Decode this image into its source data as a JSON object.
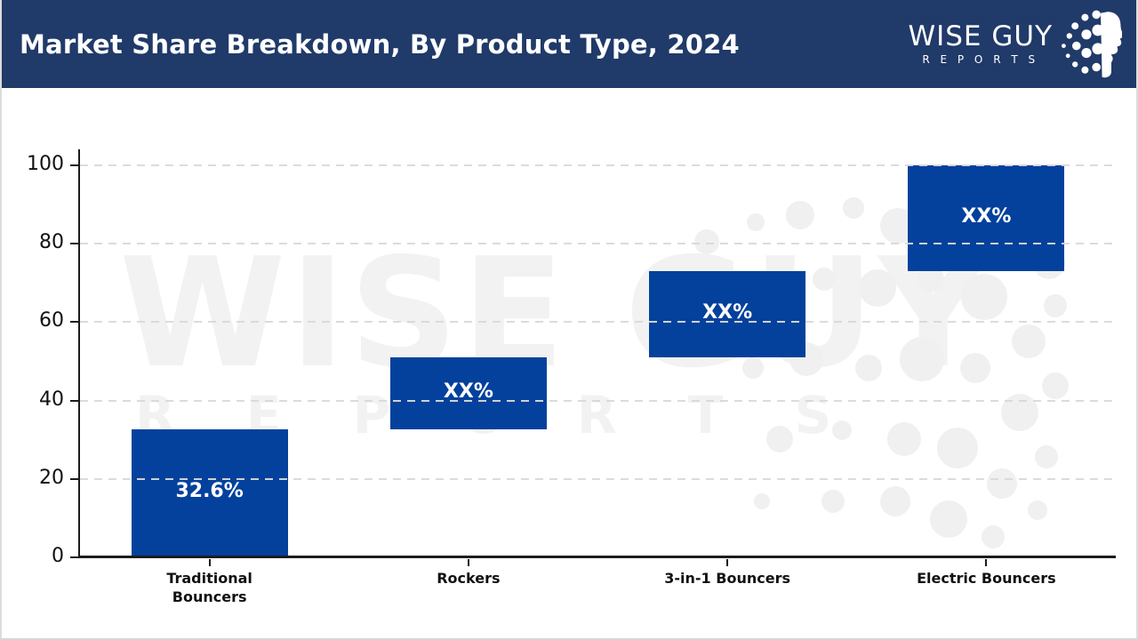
{
  "header": {
    "title": "Market Share Breakdown, By Product Type, 2024",
    "logo": {
      "name": "WISE GUY",
      "subtitle": "R E P O R T S"
    }
  },
  "watermark": {
    "name": "WISE GUY",
    "subtitle": "R E P O R T S"
  },
  "colors": {
    "header_bg": "#203a69",
    "bar": "#04419c",
    "axis": "#1c1c1c",
    "grid": "#d9d9d9",
    "tick_label": "#111111",
    "bar_label": "#ffffff",
    "watermark": "#f2f2f2"
  },
  "chart_data": {
    "type": "bar",
    "subtype": "stacked-waterfall",
    "title": "Market Share Breakdown, By Product Type, 2024",
    "categories": [
      "Traditional\nBouncers",
      "Rockers",
      "3-in-1 Bouncers",
      "Electric Bouncers"
    ],
    "segments": [
      {
        "category": "Traditional Bouncers",
        "from": 0,
        "to": 32.6,
        "label": "32.6%"
      },
      {
        "category": "Rockers",
        "from": 32.6,
        "to": 51,
        "label": "XX%"
      },
      {
        "category": "3-in-1 Bouncers",
        "from": 51,
        "to": 73,
        "label": "XX%"
      },
      {
        "category": "Electric Bouncers",
        "from": 73,
        "to": 100,
        "label": "XX%"
      }
    ],
    "xlabel": "",
    "ylabel": "",
    "ylim": [
      0,
      100
    ],
    "yticks": [
      0,
      20,
      40,
      60,
      80,
      100
    ],
    "grid": "dashed-horizontal",
    "legend": "none"
  }
}
